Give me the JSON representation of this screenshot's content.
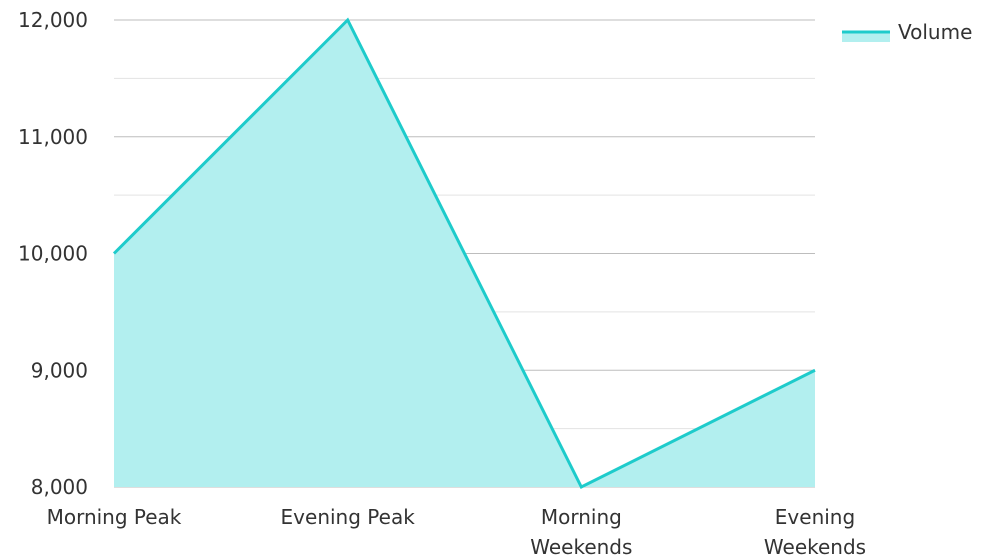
{
  "chart_data": {
    "type": "area",
    "categories": [
      [
        "Morning Peak"
      ],
      [
        "Evening Peak"
      ],
      [
        "Morning",
        "Weekends"
      ],
      [
        "Evening",
        "Weekends"
      ]
    ],
    "series": [
      {
        "name": "Volume",
        "values": [
          10000,
          12000,
          8000,
          9000
        ],
        "line_color": "#1ecbcb",
        "fill_color": "#b2efef"
      }
    ],
    "ylim": [
      8000,
      12000
    ],
    "yticks": [
      "8,000",
      "9,000",
      "10,000",
      "11,000",
      "12,000"
    ],
    "ytick_values": [
      8000,
      9000,
      10000,
      11000,
      12000
    ],
    "grid": true,
    "legend_position": "top-right",
    "title": "",
    "xlabel": "",
    "ylabel": ""
  }
}
